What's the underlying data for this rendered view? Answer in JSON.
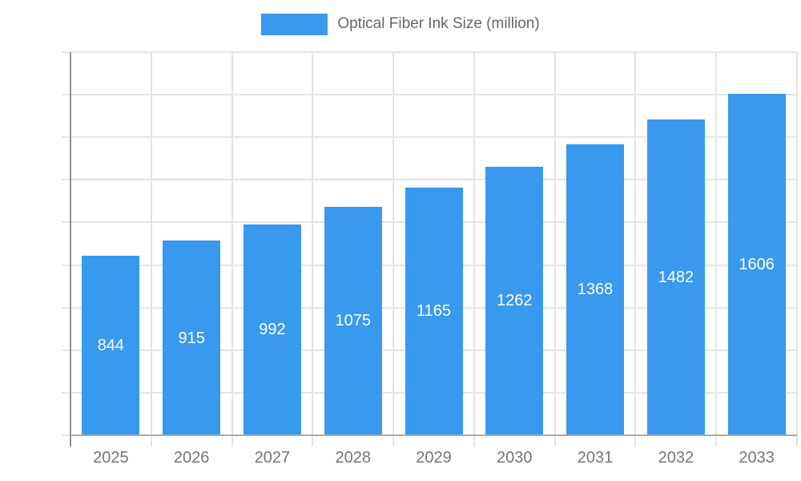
{
  "legend": {
    "label": "Optical Fiber Ink Size (million)"
  },
  "colors": {
    "bar": "#3899EE",
    "grid": "#E4E4E4",
    "axis_line": "#8F8F8F",
    "baseline": "#ABABAB",
    "tick_label": "#757575",
    "legend_text": "#666666",
    "bar_label_text": "#FFFFFF"
  },
  "chart_data": {
    "type": "bar",
    "title": "Optical Fiber Ink Size (million)",
    "categories": [
      "2025",
      "2026",
      "2027",
      "2028",
      "2029",
      "2030",
      "2031",
      "2032",
      "2033"
    ],
    "values": [
      844,
      915,
      992,
      1075,
      1165,
      1262,
      1368,
      1482,
      1606
    ],
    "xlabel": "",
    "ylabel": "",
    "ylim": [
      0,
      1800
    ],
    "ytick_step": 200,
    "yticks": [
      0,
      200,
      400,
      600,
      800,
      1000,
      1200,
      1400,
      1600,
      1800
    ],
    "grid": true,
    "legend_position": "top-center",
    "bar_value_labels": "inside-center"
  }
}
